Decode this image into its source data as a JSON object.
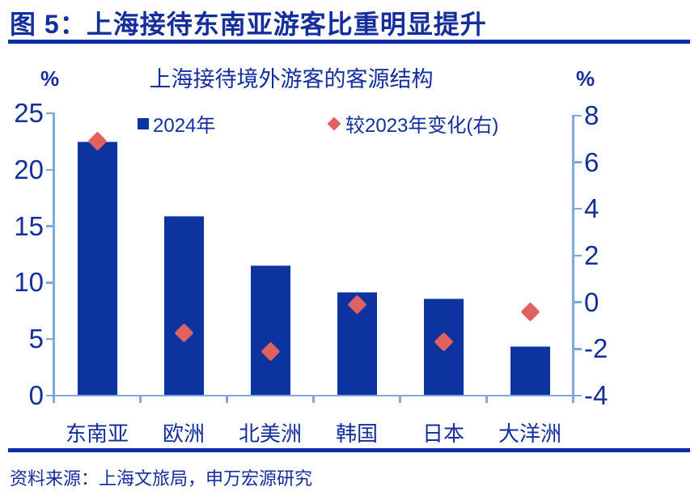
{
  "figure": {
    "title": "图 5：上海接待东南亚游客比重明显提升",
    "source": "资料来源：上海文旅局，申万宏源研究"
  },
  "chart_data": {
    "type": "bar",
    "title": "上海接待境外游客的客源结构",
    "categories": [
      "东南亚",
      "欧洲",
      "北美洲",
      "韩国",
      "日本",
      "大洋洲"
    ],
    "series": [
      {
        "name": "2024年",
        "type": "bar",
        "axis": "left",
        "values": [
          22.5,
          15.9,
          11.5,
          9.2,
          8.6,
          4.4
        ]
      },
      {
        "name": "较2023年变化(右)",
        "type": "scatter",
        "marker": "diamond",
        "axis": "right",
        "values": [
          6.9,
          -1.3,
          -2.1,
          -0.1,
          -1.7,
          -0.4
        ]
      }
    ],
    "left_axis": {
      "label": "%",
      "min": 0,
      "max": 25,
      "ticks": [
        0,
        5,
        10,
        15,
        20,
        25
      ]
    },
    "right_axis": {
      "label": "%",
      "min": -4,
      "max": 8,
      "ticks": [
        -4,
        -2,
        0,
        2,
        4,
        6,
        8
      ]
    },
    "legend_position": "top",
    "grid": false
  },
  "colors": {
    "navy": "#142E9C",
    "bar": "#0D33A1",
    "rule": "#0B2DA6",
    "diamond": "#E0625F",
    "axis": "#7FA9DC"
  }
}
